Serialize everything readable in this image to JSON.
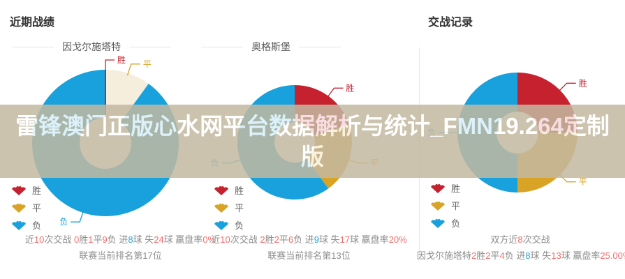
{
  "headers": {
    "left": "近期战绩",
    "right": "交战记录"
  },
  "legend": {
    "win": "胜",
    "draw": "平",
    "loss": "负"
  },
  "colors": {
    "win": "#c5212f",
    "draw": "#d9a426",
    "loss": "#18a1dc",
    "pale_draw_fill": "#f5eedd",
    "band": "#c3b9a1",
    "stat_red": "#f56c6c",
    "stat_blue": "#2ba3d4",
    "header_text": "#333333",
    "title_text": "#5a5a5a",
    "body_text": "#8d8d8d",
    "divider": "#e7e7e7"
  },
  "watermark": {
    "lines": [
      "雷锋澳门正版心水网平台数据解析与统计_FMN19.264定制",
      "版"
    ]
  },
  "chart_data": [
    {
      "type": "pie",
      "subtype": "donut",
      "title": "因戈尔施塔特",
      "categories": [
        "胜",
        "平",
        "负"
      ],
      "values": [
        0,
        1,
        9
      ],
      "slice_fill_overrides": {
        "1": "#f5eedd"
      },
      "legend_position": "bottom-left",
      "stats_line_segments": [
        [
          "近",
          ""
        ],
        [
          "10",
          "red"
        ],
        [
          "次交战 ",
          ""
        ],
        [
          "0",
          "red"
        ],
        [
          "胜",
          ""
        ],
        [
          "1",
          "red"
        ],
        [
          "平",
          ""
        ],
        [
          "9",
          "red"
        ],
        [
          "负 进",
          ""
        ],
        [
          "8",
          "blue"
        ],
        [
          "球 失",
          ""
        ],
        [
          "24",
          "red"
        ],
        [
          "球 赢盘率",
          ""
        ],
        [
          "0%",
          "red"
        ]
      ],
      "rank_line_segments": [
        [
          "联赛当前排名第17位",
          ""
        ]
      ]
    },
    {
      "type": "pie",
      "subtype": "donut",
      "title": "奥格斯堡",
      "categories": [
        "胜",
        "平",
        "负"
      ],
      "values": [
        2,
        2,
        6
      ],
      "legend_position": "bottom-left",
      "stats_line_segments": [
        [
          "近",
          ""
        ],
        [
          "10",
          "red"
        ],
        [
          "次交战 ",
          ""
        ],
        [
          "2",
          "red"
        ],
        [
          "胜",
          ""
        ],
        [
          "2",
          "red"
        ],
        [
          "平",
          ""
        ],
        [
          "6",
          "red"
        ],
        [
          "负 进",
          ""
        ],
        [
          "9",
          "blue"
        ],
        [
          "球 失",
          ""
        ],
        [
          "17",
          "red"
        ],
        [
          "球 赢盘率",
          ""
        ],
        [
          "20%",
          "red"
        ]
      ],
      "rank_line_segments": [
        [
          "联赛当前排名第13位",
          ""
        ]
      ]
    },
    {
      "type": "pie",
      "subtype": "donut",
      "title": "",
      "categories": [
        "胜",
        "平",
        "负"
      ],
      "values": [
        2,
        2,
        4
      ],
      "legend_position": "bottom-left",
      "stats_line_segments": [
        [
          "双方近",
          ""
        ],
        [
          "8",
          "red"
        ],
        [
          "次交战",
          ""
        ]
      ],
      "rank_line_segments": [
        [
          "因戈尔施塔特",
          ""
        ],
        [
          "2",
          "red"
        ],
        [
          "胜",
          ""
        ],
        [
          "2",
          "red"
        ],
        [
          "平",
          ""
        ],
        [
          "4",
          "red"
        ],
        [
          "负 进",
          ""
        ],
        [
          "8",
          "blue"
        ],
        [
          "球 失",
          ""
        ],
        [
          "13",
          "red"
        ],
        [
          "球 赢盘率",
          ""
        ],
        [
          "25.00%",
          "red"
        ]
      ]
    }
  ]
}
